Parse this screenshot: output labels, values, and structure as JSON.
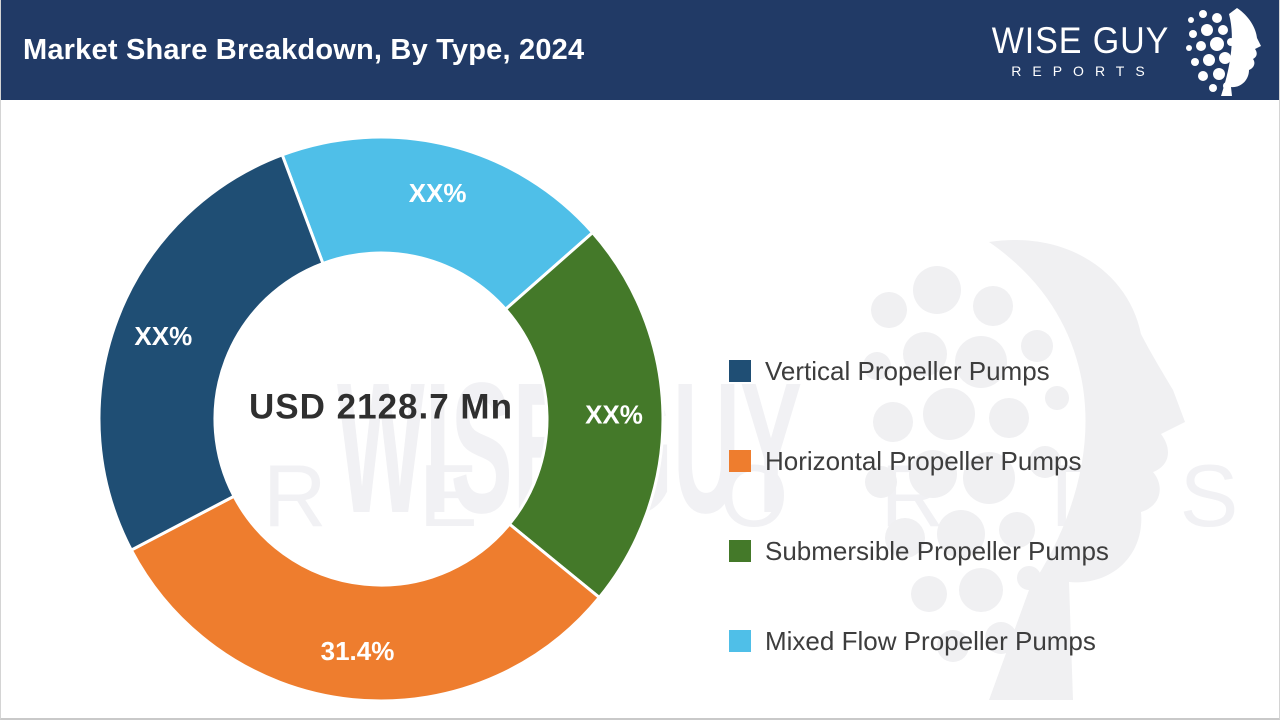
{
  "header": {
    "title": "Market Share Breakdown, By Type, 2024",
    "logo": {
      "brand": "WISE GUY",
      "sub": "REPORTS"
    }
  },
  "watermark": {
    "brand": "WISE GUY",
    "sub": "R E P O R T S"
  },
  "chart_data": {
    "type": "donut",
    "title": "Market Share Breakdown, By Type, 2024",
    "center_label": "USD 2128.7 Mn",
    "segments": [
      {
        "name": "Vertical Propeller Pumps",
        "label": "XX%",
        "value_pct": 27.0,
        "color": "#1F4E74"
      },
      {
        "name": "Horizontal Propeller Pumps",
        "label": "31.4%",
        "value_pct": 31.4,
        "color": "#EE7D2E"
      },
      {
        "name": "Submersible Propeller Pumps",
        "label": "XX%",
        "value_pct": 22.4,
        "color": "#447929"
      },
      {
        "name": "Mixed Flow Propeller Pumps",
        "label": "XX%",
        "value_pct": 19.2,
        "color": "#4FBFE8"
      }
    ],
    "layout": {
      "start_angle_deg": -20.5,
      "draw_order": [
        3,
        2,
        1,
        0
      ],
      "legend_position": "right",
      "donut_hole": true
    }
  }
}
